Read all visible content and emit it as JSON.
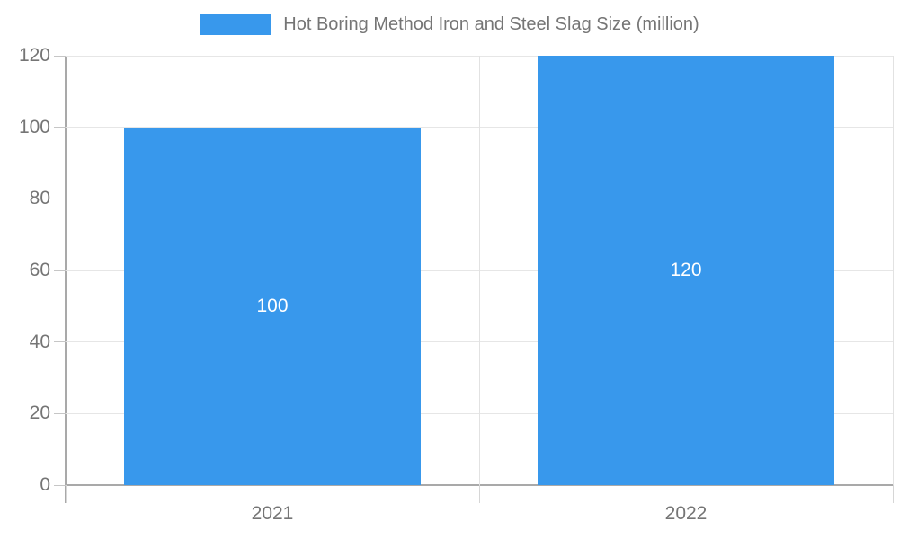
{
  "chart_data": {
    "type": "bar",
    "title": "Hot Boring Method Iron and Steel Slag Size (million)",
    "categories": [
      "2021",
      "2022"
    ],
    "values": [
      100,
      120
    ],
    "xlabel": "",
    "ylabel": "",
    "ylim": [
      0,
      120
    ],
    "yticks": [
      0,
      20,
      40,
      60,
      80,
      100,
      120
    ],
    "grid": true,
    "legend_position": "top",
    "colors": {
      "bar": "#3898ec",
      "axis": "#a9a9a9",
      "grid": "#e6e6e6",
      "tick": "#c6c6c6",
      "text": "#757575",
      "value_label": "#ffffff",
      "background": "#ffffff"
    }
  }
}
